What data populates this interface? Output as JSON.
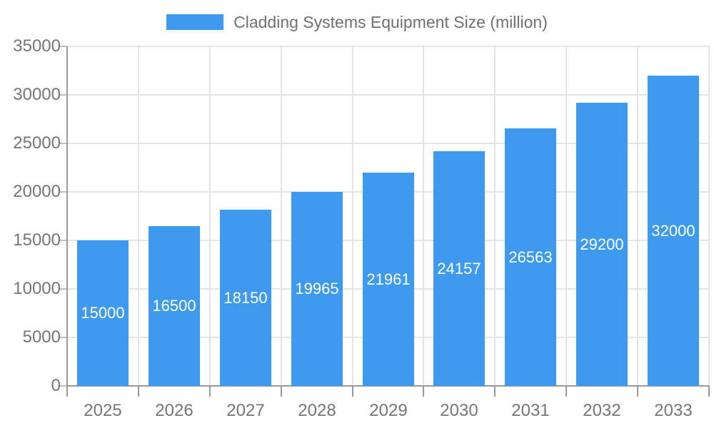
{
  "legend": {
    "label": "Cladding Systems Equipment Size (million)"
  },
  "chart_data": {
    "type": "bar",
    "title": "Cladding Systems Equipment Size (million)",
    "categories": [
      "2025",
      "2026",
      "2027",
      "2028",
      "2029",
      "2030",
      "2031",
      "2032",
      "2033"
    ],
    "values": [
      15000,
      16500,
      18150,
      19965,
      21961,
      24157,
      26563,
      29200,
      32000
    ],
    "bar_value_labels": [
      "15000",
      "16500",
      "18150",
      "19965",
      "21961",
      "24157",
      "26563",
      "29200",
      "32000"
    ],
    "xlabel": "",
    "ylabel": "",
    "ylim": [
      0,
      35000
    ],
    "yticks": [
      0,
      5000,
      10000,
      15000,
      20000,
      25000,
      30000,
      35000
    ],
    "ytick_labels": [
      "0",
      "5000",
      "10000",
      "15000",
      "20000",
      "25000",
      "30000",
      "35000"
    ],
    "grid": true,
    "legend_position": "top-center",
    "colors": {
      "bar": "#3e9aee",
      "bar_label_text": "#ffffff",
      "grid_line": "#e4e4e4",
      "axis_line": "#9a9a9a",
      "x_tick_mark": "#9a9a9a",
      "y_tick_mark": "#bdbdbd",
      "tick_text": "#757575",
      "legend_text": "#707070",
      "background": "#ffffff"
    }
  }
}
